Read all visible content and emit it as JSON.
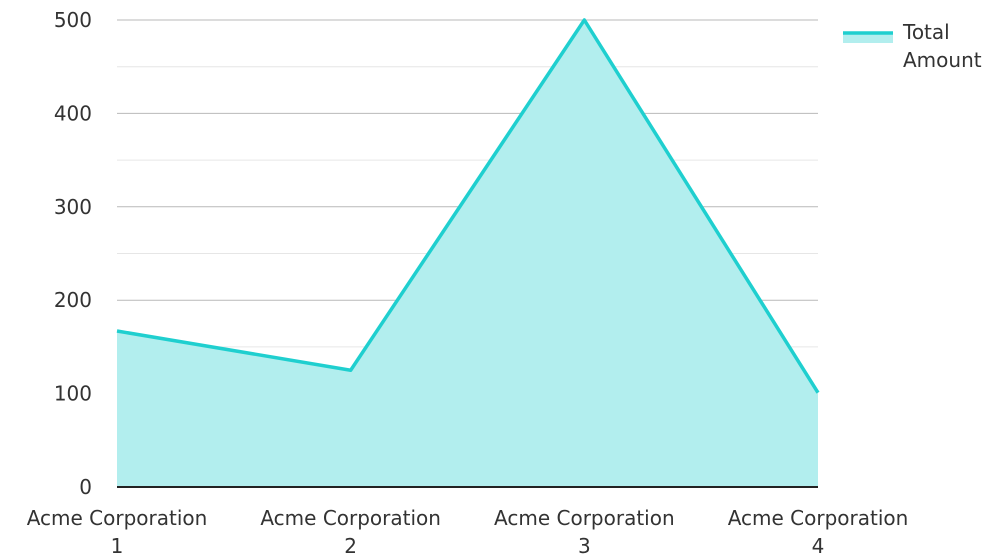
{
  "chart_data": {
    "type": "area",
    "categories": [
      [
        "Acme Corporation",
        "1"
      ],
      [
        "Acme Corporation",
        "2"
      ],
      [
        "Acme Corporation",
        "3"
      ],
      [
        "Acme Corporation",
        "4"
      ]
    ],
    "series": [
      {
        "name": "Total Amount",
        "values": [
          167,
          125,
          500,
          101
        ]
      }
    ],
    "legend": {
      "labels": [
        "Total",
        "Amount"
      ],
      "placement": "top-right"
    },
    "yticks": [
      0,
      100,
      200,
      300,
      400,
      500
    ],
    "ylim": [
      0,
      500
    ],
    "grid": true,
    "colors": {
      "line": "#1fcfcf",
      "fill": "#b2eeee",
      "grid_major": "#b9b9b9",
      "grid_minor": "#e6e6e6",
      "axis": "#222222"
    }
  }
}
